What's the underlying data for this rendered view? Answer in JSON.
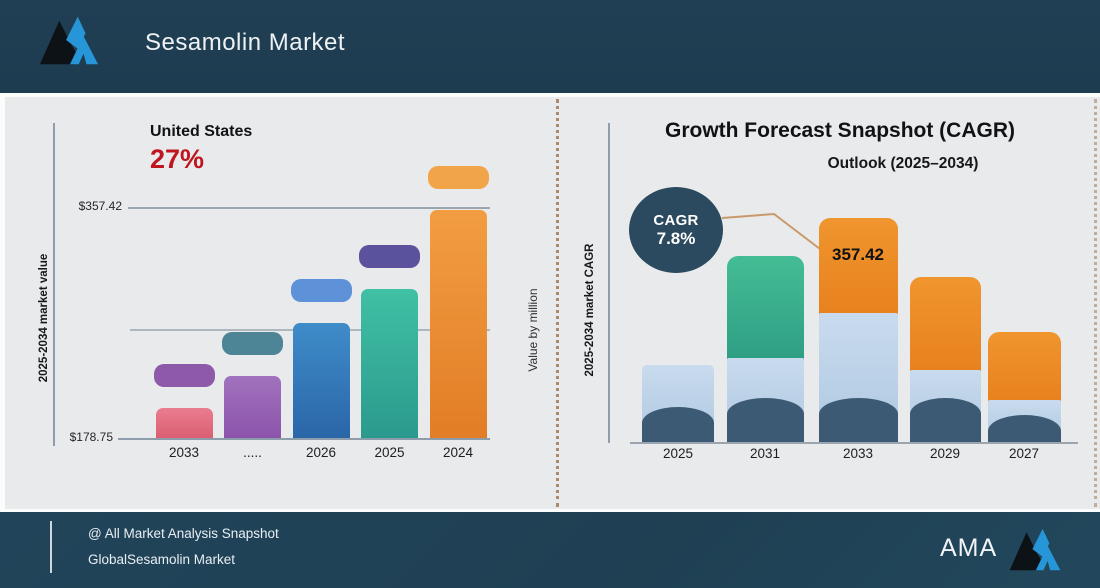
{
  "header": {
    "title": "Sesamolin Market",
    "logo": "ama-mountain-logo"
  },
  "left_chart": {
    "region_label": "United States",
    "highlight_value": "27%",
    "highlight_color": "#c0151f",
    "y_axis_title": "2025-2034 market value",
    "secondary_axis_title": "Value by million",
    "tick_top": "$357.42",
    "tick_bottom": "$178.75",
    "categories": [
      "2033",
      ".....",
      "2026",
      "2025",
      "2024"
    ]
  },
  "right_chart": {
    "title": "Growth Forecast Snapshot (CAGR)",
    "subtitle": "Outlook (2025–2034)",
    "y_axis_title": "2025-2034 market CAGR",
    "badge": {
      "line1": "CAGR",
      "line2": "7.8%",
      "color": "#2b4a5f"
    },
    "bar_annotation": {
      "text": "357.42",
      "category": "2033"
    },
    "categories": [
      "2025",
      "2031",
      "2033",
      "2029",
      "2027"
    ]
  },
  "footer": {
    "line1": "@ All Market Analysis Snapshot",
    "line2": "GlobalSesamolin Market",
    "brand": "AMA",
    "logo": "ama-mountain-logo"
  },
  "colors": {
    "page_navy": "#203e52",
    "panel_gray": "#e9eaec",
    "divider_dots": "#ab8b6d",
    "connector": "#c9996b",
    "navy_dome": "#3c5a73",
    "lightblue_top": "#c9dbee",
    "lightblue_bottom": "#aec8e0",
    "green_top": "#44bd95",
    "green_bottom": "#2f9f84",
    "orange_top": "#f0952e",
    "orange_bottom": "#e8821e"
  },
  "chart_data": [
    {
      "type": "bar",
      "title": "United States market value (2025-2034)",
      "categories": [
        "2033",
        ".....",
        "2026",
        "2025",
        "2024"
      ],
      "values": [
        202,
        227,
        268,
        294,
        355
      ],
      "values_note": "estimated from unlabeled bars; axis baseline $178.75, gridline $357.42",
      "xlabel": "",
      "ylabel": "2025-2034 market value",
      "ylim": [
        178.75,
        357.42
      ],
      "yticks": [
        "$178.75",
        "$357.42"
      ],
      "grid": "two horizontal gridlines, one labeled $357.42",
      "bar_styles": [
        {
          "fill_top": "#ea7d90",
          "fill_bottom": "#db5e72",
          "cap": "#8e59a8"
        },
        {
          "fill_top": "#a172bd",
          "fill_bottom": "#8c54ab",
          "cap": "#4d8496"
        },
        {
          "fill_top": "#3f8cc9",
          "fill_bottom": "#2a66a8",
          "cap": "#5e92d8"
        },
        {
          "fill_top": "#40c0a4",
          "fill_bottom": "#2b9a8e",
          "cap": "#5b529d"
        },
        {
          "fill_top": "#f29d42",
          "fill_bottom": "#e27d26",
          "cap": "#f2a449"
        }
      ]
    },
    {
      "type": "bar",
      "stacked": true,
      "title": "Growth Forecast Snapshot (CAGR) — Outlook (2025–2034)",
      "categories": [
        "2025",
        "2031",
        "2033",
        "2029",
        "2027"
      ],
      "series": [
        {
          "name": "base-navy",
          "values": [
            35,
            44,
            44,
            44,
            27
          ]
        },
        {
          "name": "mid-lightblue",
          "values": [
            42,
            40,
            85,
            28,
            15
          ]
        },
        {
          "name": "top-green",
          "values": [
            0,
            102,
            0,
            0,
            0
          ]
        },
        {
          "name": "top-orange",
          "values": [
            0,
            0,
            95,
            93,
            68
          ]
        }
      ],
      "values_note": "relative segment heights in px; vertical axis unlabeled",
      "xlabel": "",
      "ylabel": "2025-2034 market CAGR",
      "annotations": [
        {
          "text": "357.42",
          "category": "2033"
        },
        {
          "text": "CAGR 7.8%",
          "type": "badge-with-connector"
        }
      ],
      "legend": "none"
    }
  ]
}
